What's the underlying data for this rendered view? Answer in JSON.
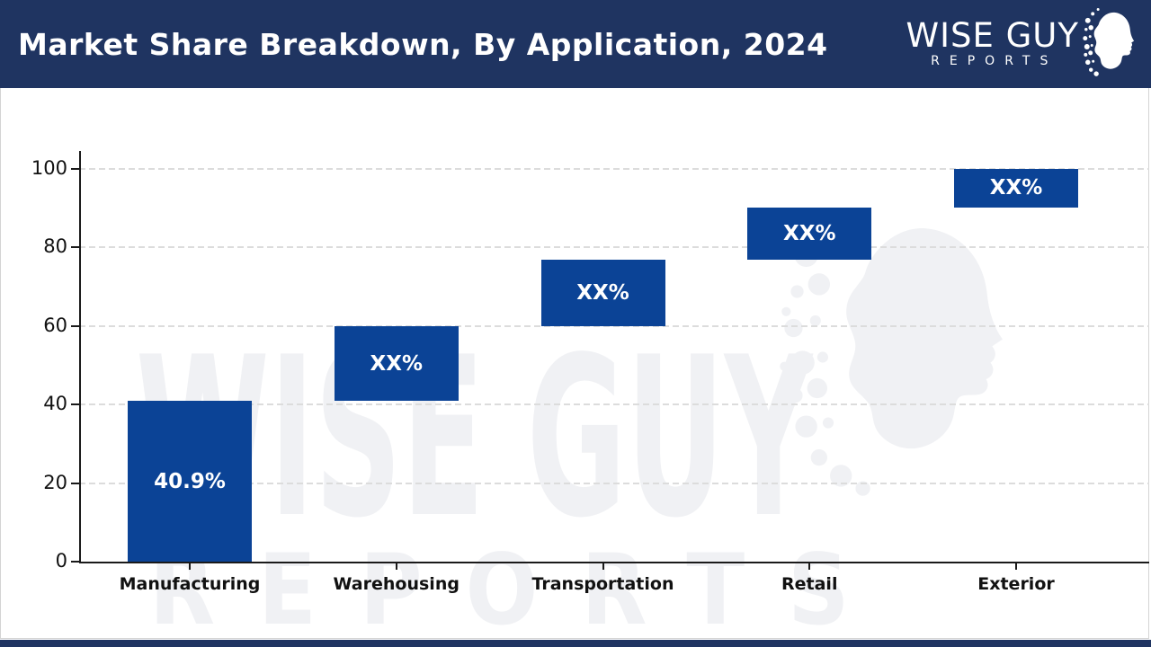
{
  "header": {
    "title": "Market Share Breakdown, By Application, 2024"
  },
  "logo": {
    "line1": "WISE GUY",
    "line2": "REPORTS",
    "head_icon": "dotted-face-profile"
  },
  "watermark": {
    "line1": "WISE GUY",
    "line2": "REPORTS",
    "head_icon": "dotted-face-profile"
  },
  "chart_data": {
    "type": "bar",
    "subtype": "waterfall",
    "title": "Market Share Breakdown, By Application, 2024",
    "categories": [
      "Manufacturing",
      "Warehousing",
      "Transportation",
      "Retail",
      "Exterior"
    ],
    "bars": [
      {
        "category": "Manufacturing",
        "from": 0,
        "to": 40.9,
        "label": "40.9%"
      },
      {
        "category": "Warehousing",
        "from": 40.9,
        "to": 60,
        "label": "XX%"
      },
      {
        "category": "Transportation",
        "from": 60,
        "to": 76.8,
        "label": "XX%"
      },
      {
        "category": "Retail",
        "from": 76.8,
        "to": 90.2,
        "label": "XX%"
      },
      {
        "category": "Exterior",
        "from": 90.2,
        "to": 100,
        "label": "XX%"
      }
    ],
    "xlabel": "",
    "ylabel": "",
    "ylim": [
      0,
      100
    ],
    "yticks": [
      0,
      20,
      40,
      60,
      80,
      100
    ],
    "grid": "horizontal-dashed",
    "legend": "none",
    "colors": {
      "bar": "#0b4396",
      "bar_label": "#ffffff",
      "axis": "#1a1a1a",
      "gridline": "#dcdcdc",
      "tick_label": "#111111"
    }
  },
  "colors": {
    "header_bg": "#1f3461",
    "footer_bg": "#1f3461",
    "page_bg": "#ffffff",
    "watermark": "#f0f1f4"
  }
}
